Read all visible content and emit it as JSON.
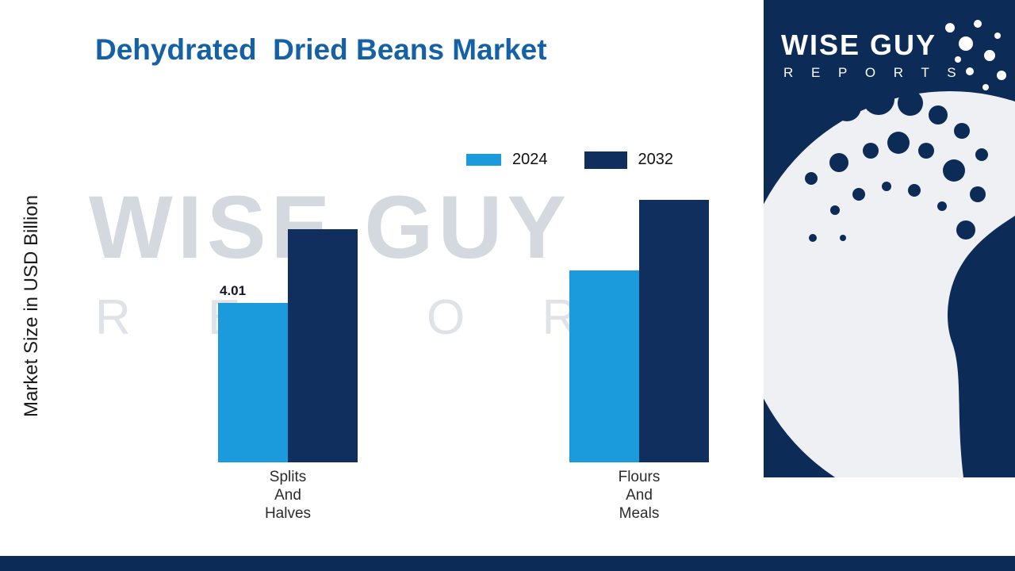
{
  "title": "Dehydrated  Dried Beans Market",
  "brand": {
    "line1": "WISE GUY",
    "line2": "R E P O R T S"
  },
  "watermark": {
    "line1": "WISE GUY",
    "line2": "R E P O R T"
  },
  "colors": {
    "title_blue": "#1561a6",
    "bar_2024": "#1b9bdb",
    "bar_2032": "#102e5e",
    "panel_navy": "#0d2b57",
    "watermark_gray": "#d4d9df"
  },
  "chart_data": {
    "type": "bar",
    "title": "Dehydrated Dried Beans Market",
    "xlabel": "",
    "ylabel": "Market Size in USD Billion",
    "categories": [
      "Splits\nAnd\nHalves",
      "Flours\nAnd\nMeals"
    ],
    "series": [
      {
        "name": "2024",
        "color": "#1b9bdb",
        "values": [
          4.01,
          4.83
        ],
        "labels": [
          "4.01",
          ""
        ]
      },
      {
        "name": "2032",
        "color": "#102e5e",
        "values": [
          5.87,
          6.61
        ],
        "labels": [
          "",
          ""
        ]
      }
    ],
    "ylim": [
      0,
      7
    ],
    "grid": false,
    "legend_position": "top"
  }
}
